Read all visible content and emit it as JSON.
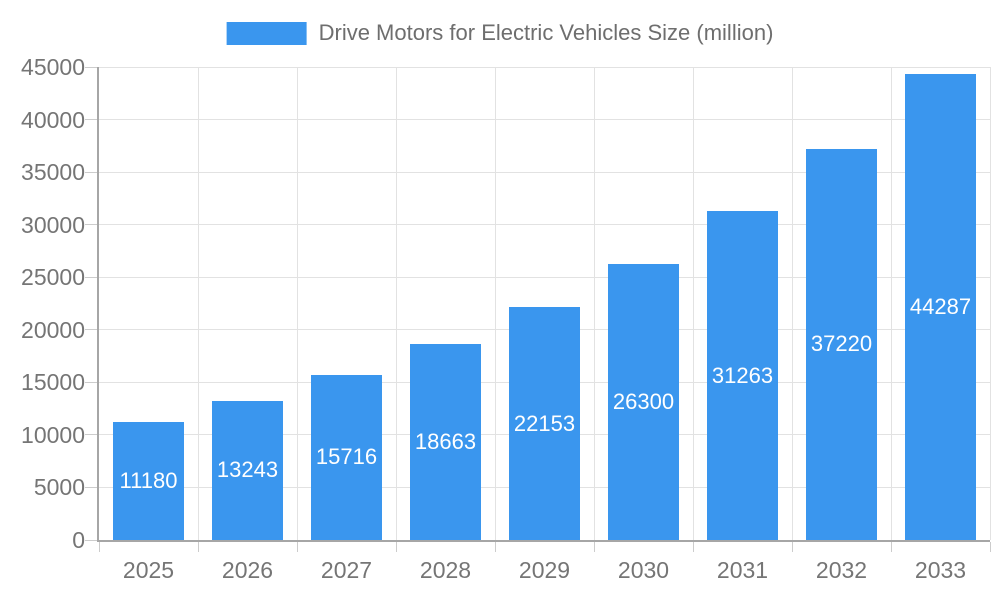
{
  "legend": {
    "label": "Drive Motors for Electric Vehicles Size (million)"
  },
  "colors": {
    "bar": "#3a96ee",
    "grid": "#e2e2e2",
    "axis": "#a6a6a6",
    "tick": "#cccccc",
    "axis_text": "#757575",
    "legend_text": "#6e6e6e",
    "value_label_text": "#ffffff",
    "background": "#ffffff"
  },
  "chart_data": {
    "type": "bar",
    "title": "Drive Motors for Electric Vehicles Size (million)",
    "categories": [
      "2025",
      "2026",
      "2027",
      "2028",
      "2029",
      "2030",
      "2031",
      "2032",
      "2033"
    ],
    "values": [
      11180,
      13243,
      15716,
      18663,
      22153,
      26300,
      31263,
      37220,
      44287
    ],
    "series": [
      {
        "name": "Drive Motors for Electric Vehicles Size (million)",
        "values": [
          11180,
          13243,
          15716,
          18663,
          22153,
          26300,
          31263,
          37220,
          44287
        ]
      }
    ],
    "xlabel": "",
    "ylabel": "",
    "ylim": [
      0,
      45000
    ],
    "ytick_step": 5000,
    "yticks": [
      0,
      5000,
      10000,
      15000,
      20000,
      25000,
      30000,
      35000,
      40000,
      45000
    ],
    "grid": true,
    "legend_position": "top-center",
    "value_labels": "inside-center-white"
  }
}
